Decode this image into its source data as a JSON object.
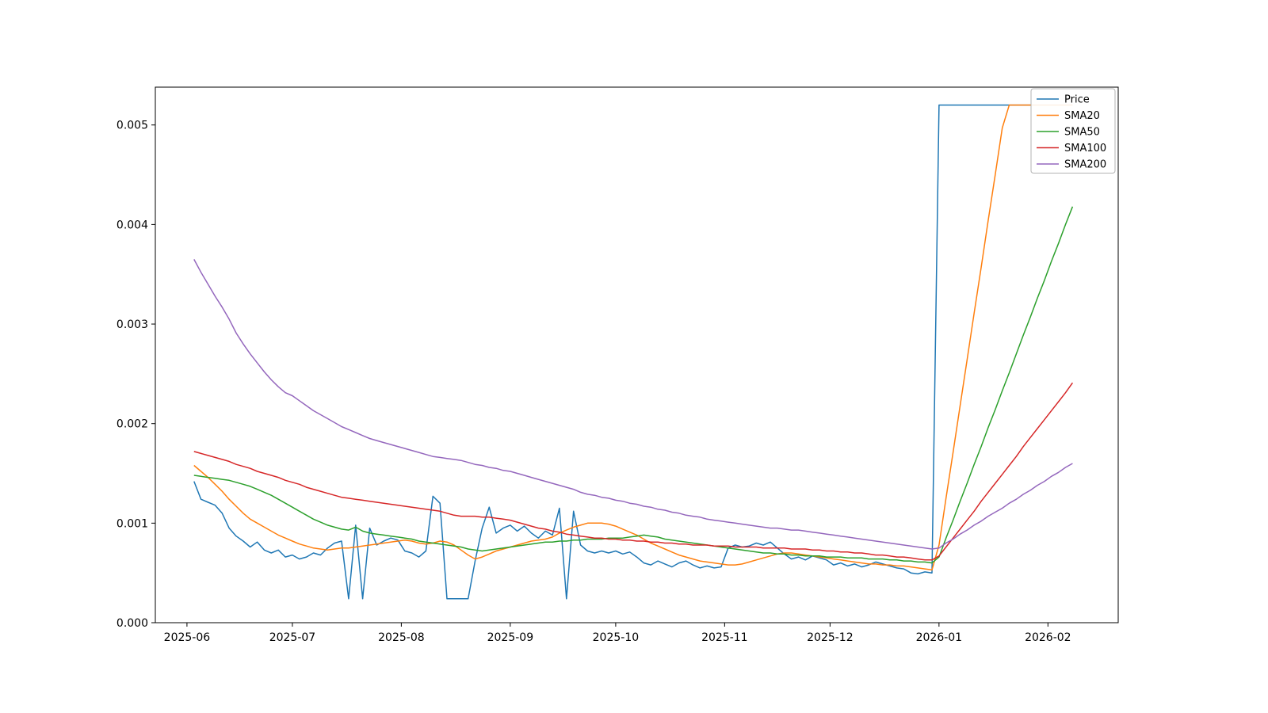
{
  "figure": {
    "background": "#ffffff",
    "axis_color": "#000000",
    "legend_border_color": "#b3b3b3",
    "legend_background": "#ffffff"
  },
  "chart_data": {
    "type": "line",
    "title": "",
    "xlabel": "",
    "ylabel": "",
    "grid": false,
    "legend_position": "upper right",
    "x_start": "2025-06-03",
    "x_step_days": 2,
    "xlim": [
      "2025-05-23",
      "2026-02-21"
    ],
    "ylim": [
      0,
      0.00538
    ],
    "yticks": [
      {
        "v": 0.0,
        "label": "0.000"
      },
      {
        "v": 0.001,
        "label": "0.001"
      },
      {
        "v": 0.002,
        "label": "0.002"
      },
      {
        "v": 0.003,
        "label": "0.003"
      },
      {
        "v": 0.004,
        "label": "0.004"
      },
      {
        "v": 0.005,
        "label": "0.005"
      }
    ],
    "xticks": [
      {
        "date": "2025-06-01",
        "label": "2025-06"
      },
      {
        "date": "2025-07-01",
        "label": "2025-07"
      },
      {
        "date": "2025-08-01",
        "label": "2025-08"
      },
      {
        "date": "2025-09-01",
        "label": "2025-09"
      },
      {
        "date": "2025-10-01",
        "label": "2025-10"
      },
      {
        "date": "2025-11-01",
        "label": "2025-11"
      },
      {
        "date": "2025-12-01",
        "label": "2025-12"
      },
      {
        "date": "2026-01-01",
        "label": "2026-01"
      },
      {
        "date": "2026-02-01",
        "label": "2026-02"
      }
    ],
    "series": [
      {
        "name": "Price",
        "color": "#1f77b4",
        "values": [
          0.00142,
          0.00124,
          0.00121,
          0.00118,
          0.0011,
          0.00095,
          0.00087,
          0.00082,
          0.00076,
          0.00081,
          0.00073,
          0.0007,
          0.00073,
          0.00066,
          0.00068,
          0.00064,
          0.00066,
          0.0007,
          0.00068,
          0.00075,
          0.0008,
          0.00082,
          0.00024,
          0.00098,
          0.00024,
          0.00095,
          0.00078,
          0.00082,
          0.00085,
          0.00083,
          0.00072,
          0.0007,
          0.00066,
          0.00072,
          0.00127,
          0.0012,
          0.00024,
          0.00024,
          0.00024,
          0.00024,
          0.00062,
          0.00095,
          0.00116,
          0.0009,
          0.00095,
          0.00098,
          0.00092,
          0.00097,
          0.0009,
          0.00085,
          0.00092,
          0.00088,
          0.00115,
          0.00024,
          0.00112,
          0.00078,
          0.00072,
          0.0007,
          0.00072,
          0.0007,
          0.00072,
          0.00069,
          0.00071,
          0.00066,
          0.0006,
          0.00058,
          0.00062,
          0.00059,
          0.00056,
          0.0006,
          0.00062,
          0.00058,
          0.00055,
          0.00057,
          0.00055,
          0.00056,
          0.00075,
          0.00078,
          0.00076,
          0.00077,
          0.0008,
          0.00078,
          0.00081,
          0.00075,
          0.00069,
          0.00064,
          0.00066,
          0.00063,
          0.00067,
          0.00065,
          0.00063,
          0.00058,
          0.0006,
          0.00057,
          0.00059,
          0.00056,
          0.00058,
          0.00061,
          0.00059,
          0.00057,
          0.00055,
          0.00054,
          0.0005,
          0.00049,
          0.00051,
          0.0005,
          0.0052,
          0.0052,
          0.0052,
          0.0052,
          0.0052,
          0.0052,
          0.0052,
          0.0052,
          0.0052,
          0.0052,
          0.0052,
          0.0052,
          0.0052,
          0.0052,
          0.0052,
          0.0052,
          0.0052,
          0.0052,
          0.0052,
          0.0052
        ]
      },
      {
        "name": "SMA20",
        "color": "#ff7f0e",
        "values": [
          0.00158,
          0.00152,
          0.00146,
          0.00139,
          0.00132,
          0.00124,
          0.00117,
          0.0011,
          0.00104,
          0.001,
          0.00096,
          0.00092,
          0.00088,
          0.00085,
          0.00082,
          0.00079,
          0.00077,
          0.00075,
          0.00074,
          0.00073,
          0.00074,
          0.00075,
          0.00075,
          0.00076,
          0.00077,
          0.00078,
          0.00079,
          0.0008,
          0.00081,
          0.00082,
          0.00083,
          0.00082,
          0.0008,
          0.00079,
          0.0008,
          0.00082,
          0.00081,
          0.00078,
          0.00073,
          0.00068,
          0.00064,
          0.00066,
          0.00069,
          0.00072,
          0.00074,
          0.00076,
          0.00078,
          0.0008,
          0.00082,
          0.00083,
          0.00084,
          0.00086,
          0.0009,
          0.00093,
          0.00096,
          0.00098,
          0.001,
          0.001,
          0.001,
          0.00099,
          0.00097,
          0.00094,
          0.00091,
          0.00088,
          0.00084,
          0.0008,
          0.00077,
          0.00074,
          0.00071,
          0.00068,
          0.00066,
          0.00064,
          0.00062,
          0.00061,
          0.0006,
          0.00059,
          0.00058,
          0.00058,
          0.00059,
          0.00061,
          0.00063,
          0.00065,
          0.00067,
          0.00069,
          0.0007,
          0.0007,
          0.00069,
          0.00068,
          0.00067,
          0.00066,
          0.00065,
          0.00064,
          0.00063,
          0.00062,
          0.00061,
          0.0006,
          0.00059,
          0.00059,
          0.00058,
          0.00058,
          0.00057,
          0.00057,
          0.00056,
          0.00055,
          0.00054,
          0.00053,
          0.00078,
          0.00125,
          0.00171,
          0.00218,
          0.00264,
          0.00311,
          0.00357,
          0.00404,
          0.0045,
          0.00497,
          0.0052,
          0.0052,
          0.0052,
          0.0052,
          0.0052,
          0.0052,
          0.0052,
          0.0052,
          0.0052,
          0.0052
        ]
      },
      {
        "name": "SMA50",
        "color": "#2ca02c",
        "values": [
          0.00148,
          0.00147,
          0.00146,
          0.00145,
          0.00144,
          0.00143,
          0.00141,
          0.00139,
          0.00137,
          0.00134,
          0.00131,
          0.00128,
          0.00124,
          0.0012,
          0.00116,
          0.00112,
          0.00108,
          0.00104,
          0.00101,
          0.00098,
          0.00096,
          0.00094,
          0.00093,
          0.00096,
          0.00092,
          0.0009,
          0.00089,
          0.00088,
          0.00087,
          0.00086,
          0.00085,
          0.00084,
          0.00082,
          0.00081,
          0.0008,
          0.00079,
          0.00078,
          0.00077,
          0.00076,
          0.00074,
          0.00073,
          0.00072,
          0.00073,
          0.00074,
          0.00075,
          0.00076,
          0.00077,
          0.00078,
          0.00079,
          0.0008,
          0.00081,
          0.00081,
          0.00082,
          0.00082,
          0.00083,
          0.00083,
          0.00084,
          0.00084,
          0.00084,
          0.00085,
          0.00085,
          0.00085,
          0.00086,
          0.00087,
          0.00088,
          0.00087,
          0.00086,
          0.00084,
          0.00083,
          0.00082,
          0.00081,
          0.0008,
          0.00079,
          0.00078,
          0.00077,
          0.00076,
          0.00075,
          0.00074,
          0.00073,
          0.00072,
          0.00071,
          0.0007,
          0.0007,
          0.00069,
          0.00069,
          0.00068,
          0.00068,
          0.00067,
          0.00067,
          0.00067,
          0.00066,
          0.00066,
          0.00066,
          0.00065,
          0.00065,
          0.00065,
          0.00064,
          0.00064,
          0.00064,
          0.00063,
          0.00063,
          0.00062,
          0.00062,
          0.00061,
          0.00061,
          0.0006,
          0.00066,
          0.00085,
          0.00103,
          0.00122,
          0.0014,
          0.00159,
          0.00177,
          0.00196,
          0.00214,
          0.00233,
          0.00251,
          0.0027,
          0.00289,
          0.00307,
          0.00326,
          0.00344,
          0.00363,
          0.00381,
          0.004,
          0.00418
        ]
      },
      {
        "name": "SMA100",
        "color": "#d62728",
        "values": [
          0.00172,
          0.0017,
          0.00168,
          0.00166,
          0.00164,
          0.00162,
          0.00159,
          0.00157,
          0.00155,
          0.00152,
          0.0015,
          0.00148,
          0.00146,
          0.00143,
          0.00141,
          0.00139,
          0.00136,
          0.00134,
          0.00132,
          0.0013,
          0.00128,
          0.00126,
          0.00125,
          0.00124,
          0.00123,
          0.00122,
          0.00121,
          0.0012,
          0.00119,
          0.00118,
          0.00117,
          0.00116,
          0.00115,
          0.00114,
          0.00113,
          0.00112,
          0.0011,
          0.00108,
          0.00107,
          0.00107,
          0.00107,
          0.00106,
          0.00106,
          0.00105,
          0.00104,
          0.00103,
          0.00101,
          0.00099,
          0.00097,
          0.00095,
          0.00094,
          0.00092,
          0.00091,
          0.00089,
          0.00088,
          0.00087,
          0.00086,
          0.00085,
          0.00085,
          0.00084,
          0.00084,
          0.00083,
          0.00083,
          0.00082,
          0.00082,
          0.00081,
          0.00081,
          0.0008,
          0.0008,
          0.00079,
          0.00079,
          0.00078,
          0.00078,
          0.00078,
          0.00077,
          0.00077,
          0.00077,
          0.00076,
          0.00076,
          0.00076,
          0.00076,
          0.00075,
          0.00075,
          0.00075,
          0.00075,
          0.00074,
          0.00074,
          0.00074,
          0.00073,
          0.00073,
          0.00072,
          0.00072,
          0.00071,
          0.00071,
          0.0007,
          0.0007,
          0.00069,
          0.00068,
          0.00068,
          0.00067,
          0.00066,
          0.00066,
          0.00065,
          0.00064,
          0.00063,
          0.00063,
          0.00067,
          0.00076,
          0.00085,
          0.00094,
          0.00103,
          0.00112,
          0.00122,
          0.00131,
          0.0014,
          0.00149,
          0.00158,
          0.00167,
          0.00177,
          0.00186,
          0.00195,
          0.00204,
          0.00213,
          0.00222,
          0.00231,
          0.00241
        ]
      },
      {
        "name": "SMA200",
        "color": "#9467bd",
        "values": [
          0.00365,
          0.00352,
          0.0034,
          0.00328,
          0.00317,
          0.00305,
          0.00291,
          0.0028,
          0.0027,
          0.00261,
          0.00252,
          0.00244,
          0.00237,
          0.00231,
          0.00228,
          0.00223,
          0.00218,
          0.00213,
          0.00209,
          0.00205,
          0.00201,
          0.00197,
          0.00194,
          0.00191,
          0.00188,
          0.00185,
          0.00183,
          0.00181,
          0.00179,
          0.00177,
          0.00175,
          0.00173,
          0.00171,
          0.00169,
          0.00167,
          0.00166,
          0.00165,
          0.00164,
          0.00163,
          0.00161,
          0.00159,
          0.00158,
          0.00156,
          0.00155,
          0.00153,
          0.00152,
          0.0015,
          0.00148,
          0.00146,
          0.00144,
          0.00142,
          0.0014,
          0.00138,
          0.00136,
          0.00134,
          0.00131,
          0.00129,
          0.00128,
          0.00126,
          0.00125,
          0.00123,
          0.00122,
          0.0012,
          0.00119,
          0.00117,
          0.00116,
          0.00114,
          0.00113,
          0.00111,
          0.0011,
          0.00108,
          0.00107,
          0.00106,
          0.00104,
          0.00103,
          0.00102,
          0.00101,
          0.001,
          0.00099,
          0.00098,
          0.00097,
          0.00096,
          0.00095,
          0.00095,
          0.00094,
          0.00093,
          0.00093,
          0.00092,
          0.00091,
          0.0009,
          0.00089,
          0.00088,
          0.00087,
          0.00086,
          0.00085,
          0.00084,
          0.00083,
          0.00082,
          0.00081,
          0.0008,
          0.00079,
          0.00078,
          0.00077,
          0.00076,
          0.00075,
          0.00074,
          0.00075,
          0.0008,
          0.00084,
          0.00089,
          0.00093,
          0.00098,
          0.00102,
          0.00107,
          0.00111,
          0.00115,
          0.0012,
          0.00124,
          0.00129,
          0.00133,
          0.00138,
          0.00142,
          0.00147,
          0.00151,
          0.00156,
          0.0016
        ]
      }
    ]
  }
}
